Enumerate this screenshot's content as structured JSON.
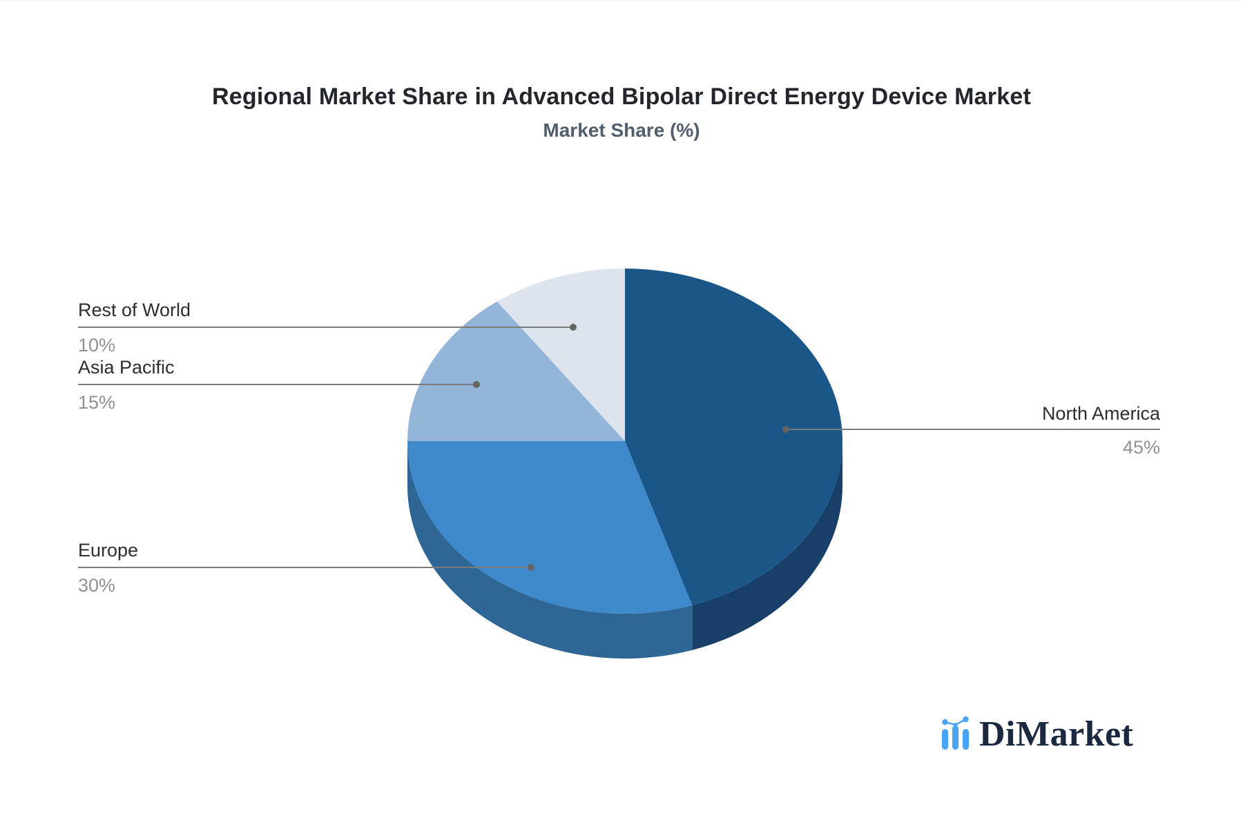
{
  "header": {
    "title": "Regional Market Share in Advanced Bipolar Direct Energy Device Market",
    "subtitle": "Market Share (%)"
  },
  "chart_data": {
    "type": "pie",
    "style": "3d",
    "title": "Regional Market Share in Advanced Bipolar Direct Energy Device Market",
    "subtitle": "Market Share (%)",
    "units": "%",
    "start_angle_deg": 0,
    "direction": "clockwise",
    "legend_position": "none",
    "labeling": "leader-lines",
    "categories": [
      "North America",
      "Europe",
      "Asia Pacific",
      "Rest of World"
    ],
    "values": [
      45,
      30,
      15,
      10
    ],
    "slices": [
      {
        "label": "North America",
        "value": 45,
        "display": "45%",
        "color": "#1b5689",
        "side_color": "#173f68"
      },
      {
        "label": "Europe",
        "value": 30,
        "display": "30%",
        "color": "#3d89cb",
        "side_color": "#2e6795"
      },
      {
        "label": "Asia Pacific",
        "value": 15,
        "display": "15%",
        "color": "#92b5d9",
        "side_color": "#7495ad"
      },
      {
        "label": "Rest of World",
        "value": 10,
        "display": "10%",
        "color": "#dde4ee",
        "side_color": "#b2b9c4"
      }
    ],
    "leader_line_color": "#7b7b7b",
    "leader_dot_color": "#646464"
  },
  "branding": {
    "logo_text": "DiMarket",
    "logo_text_color": "#1b2940",
    "icon_color": "#4aa3f3"
  }
}
